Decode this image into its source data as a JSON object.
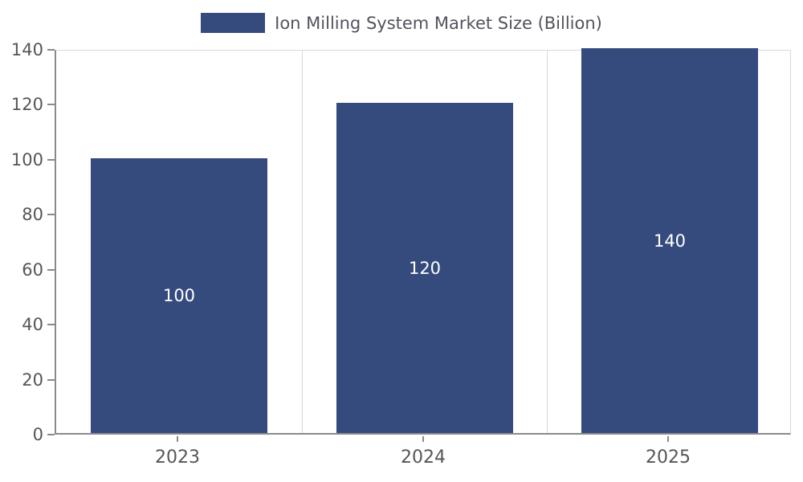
{
  "chart_data": {
    "type": "bar",
    "title": "Ion Milling System Market Size (Billion)",
    "categories": [
      "2023",
      "2024",
      "2025"
    ],
    "values": [
      100,
      120,
      140
    ],
    "value_labels": [
      "100",
      "120",
      "140"
    ],
    "xlabel": "",
    "ylabel": "",
    "ylim": [
      0,
      140
    ],
    "yticks": [
      0,
      20,
      40,
      60,
      80,
      100,
      120,
      140
    ],
    "bar_color": "#364b7d",
    "value_label_color": "#ffffff",
    "legend_position": "top-center",
    "grid": "vertical-category-separators"
  }
}
